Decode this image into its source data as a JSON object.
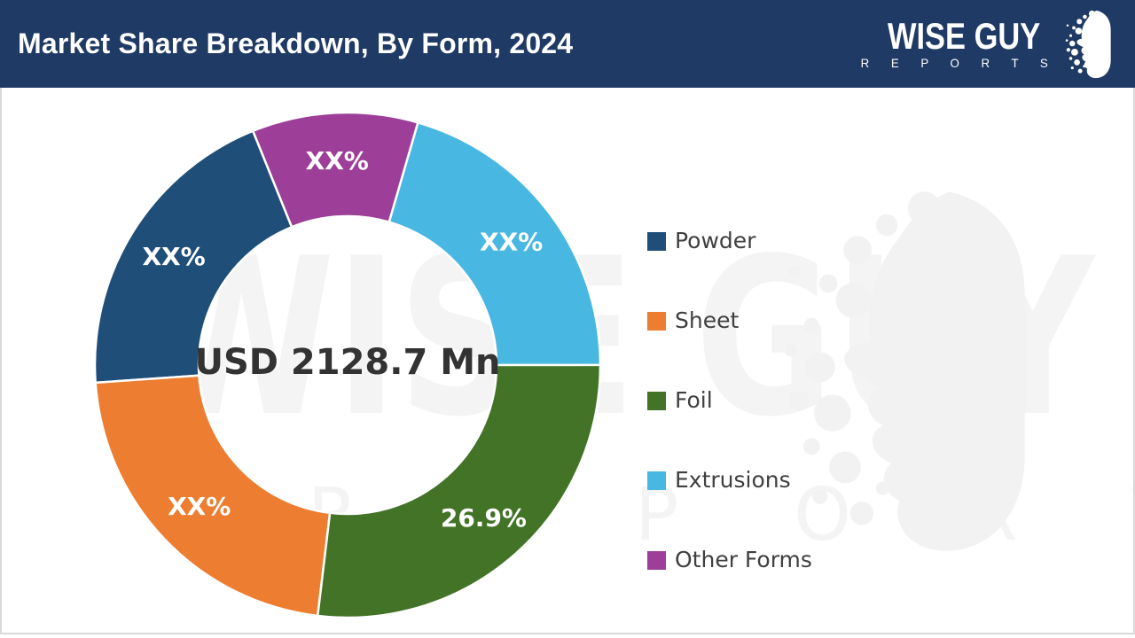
{
  "header": {
    "title": "Market Share Breakdown, By Form, 2024",
    "bg_color": "#1f3a64",
    "logo": {
      "line1": "WISE GUY",
      "line2": "R E P O R T S"
    }
  },
  "watermark": {
    "line1": "WISE GUY",
    "line2": "R E P O R T S"
  },
  "chart_data": {
    "type": "pie",
    "donut": true,
    "title": "Market Share Breakdown, By Form, 2024",
    "center_label": "USD 2128.7 Mn",
    "start_angle_deg": 112,
    "direction": "counterclockwise",
    "legend_position": "right",
    "inner_radius_ratio": 0.59,
    "segments": [
      {
        "name": "Powder",
        "label": "XX%",
        "percent": 20.0,
        "color": "#1f4e79"
      },
      {
        "name": "Sheet",
        "label": "XX%",
        "percent": 22.0,
        "color": "#ed7d31"
      },
      {
        "name": "Foil",
        "label": "26.9%",
        "percent": 26.9,
        "color": "#437327"
      },
      {
        "name": "Extrusions",
        "label": "XX%",
        "percent": 20.5,
        "color": "#48b7e2"
      },
      {
        "name": "Other Forms",
        "label": "XX%",
        "percent": 10.6,
        "color": "#9d3f98"
      }
    ]
  }
}
